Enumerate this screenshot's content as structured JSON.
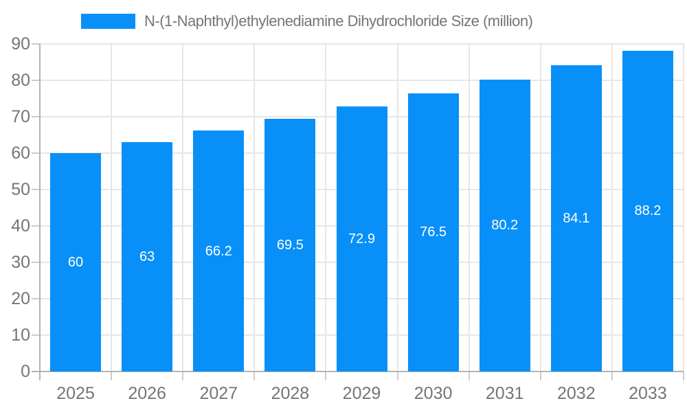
{
  "chart_data": {
    "type": "bar",
    "title": "N-(1-Naphthyl)ethylenediamine Dihydrochloride Size (million)",
    "legend": {
      "label": "N-(1-Naphthyl)ethylenediamine Dihydrochloride Size (million)",
      "position": "top"
    },
    "categories": [
      "2025",
      "2026",
      "2027",
      "2028",
      "2029",
      "2030",
      "2031",
      "2032",
      "2033"
    ],
    "values": [
      60,
      63,
      66.2,
      69.5,
      72.9,
      76.5,
      80.2,
      84.1,
      88.2
    ],
    "value_labels": [
      "60",
      "63",
      "66.2",
      "69.5",
      "72.9",
      "76.5",
      "80.2",
      "84.1",
      "88.2"
    ],
    "xlabel": "",
    "ylabel": "",
    "ylim": [
      0,
      90
    ],
    "y_tick_step": 10,
    "y_tick_labels": [
      "0",
      "10",
      "20",
      "30",
      "40",
      "50",
      "60",
      "70",
      "80",
      "90"
    ],
    "grid": true,
    "colors": {
      "bar": "#0890f8",
      "axis": "#b3b3b3",
      "grid": "#e6e6e6",
      "tick": "#cccccc",
      "text": "#757575",
      "bar_label": "#ffffff",
      "background": "#ffffff"
    }
  }
}
